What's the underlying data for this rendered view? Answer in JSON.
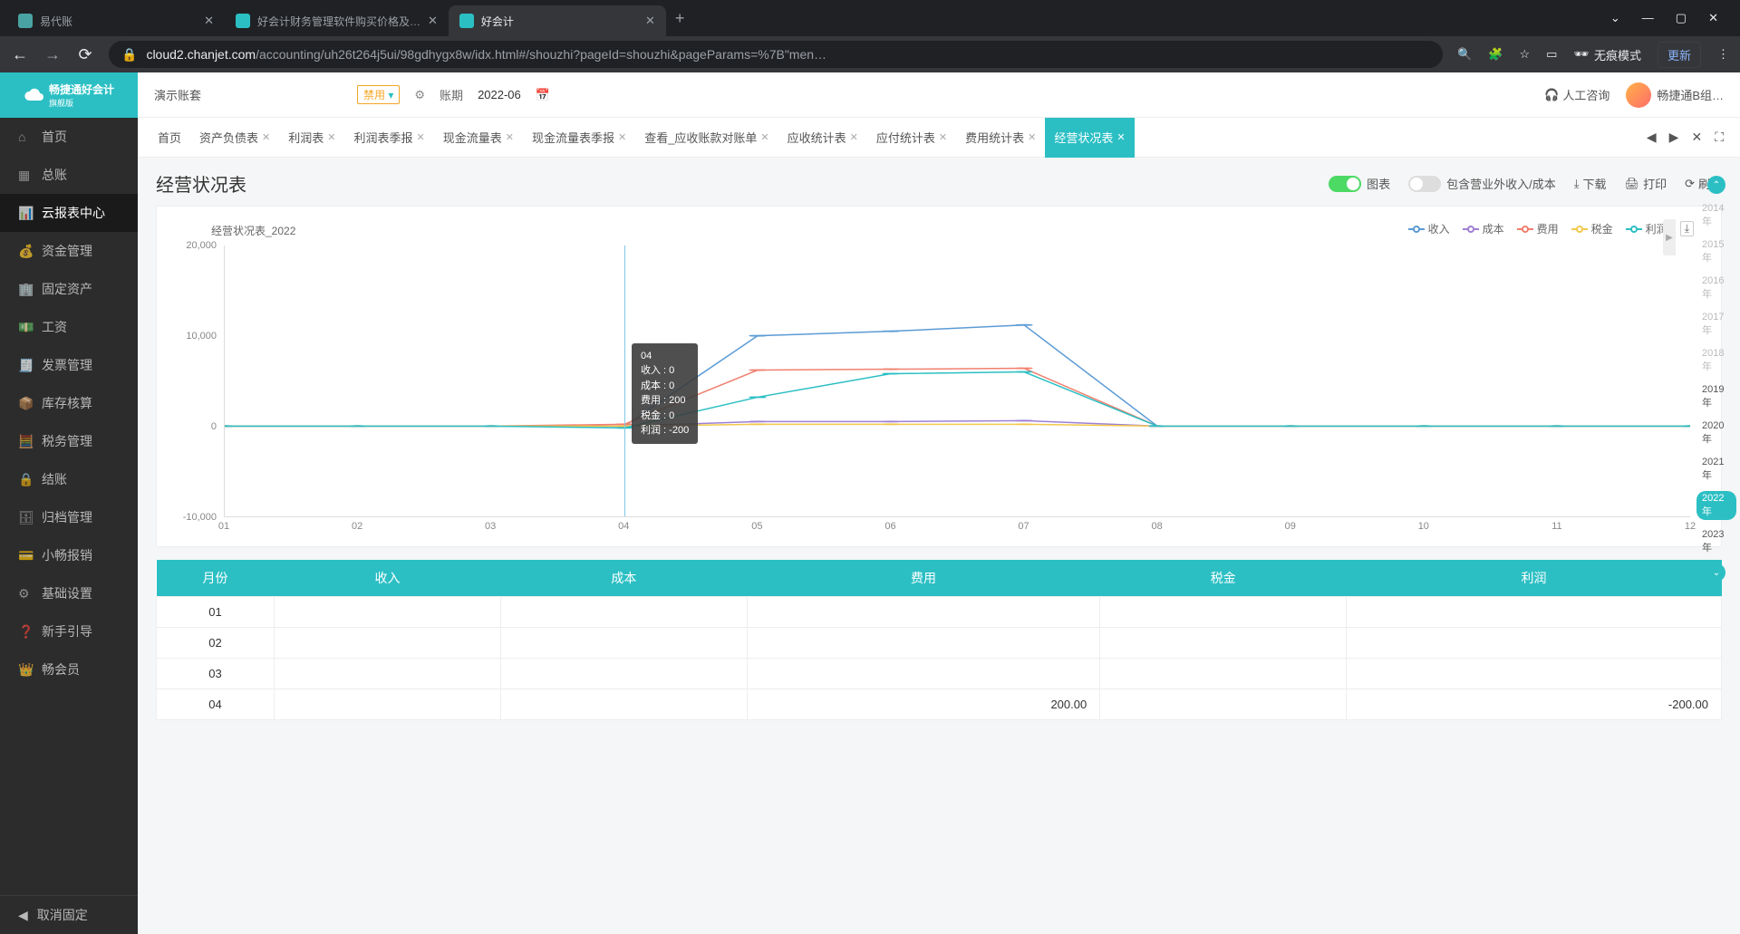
{
  "browser": {
    "tabs": [
      {
        "title": "易代账",
        "favicon_color": "#4aa3a3"
      },
      {
        "title": "好会计财务管理软件购买价格及…",
        "favicon_color": "#2bbfc4"
      },
      {
        "title": "好会计",
        "favicon_color": "#2bbfc4",
        "active": true
      }
    ],
    "url_domain": "cloud2.chanjet.com",
    "url_path": "/accounting/uh26t264j5ui/98gdhygx8w/idx.html#/shouzhi?pageId=shouzhi&pageParams=%7B\"men…",
    "incognito_label": "无痕模式",
    "update_label": "更新"
  },
  "sidebar": {
    "logo_text": "畅捷通好会计",
    "logo_sub": "旗舰版",
    "items": [
      "首页",
      "总账",
      "云报表中心",
      "资金管理",
      "固定资产",
      "工资",
      "发票管理",
      "库存核算",
      "税务管理",
      "结账",
      "归档管理",
      "小畅报销",
      "基础设置",
      "新手引导",
      "畅会员"
    ],
    "active_index": 2,
    "bottom_label": "取消固定"
  },
  "topbar": {
    "account_name": "演示账套",
    "trial_label": "禁用",
    "period_label": "账期",
    "period_value": "2022-06",
    "support_label": "人工咨询",
    "user_name": "畅捷通B组…"
  },
  "page_tabs": {
    "items": [
      "首页",
      "资产负债表",
      "利润表",
      "利润表季报",
      "现金流量表",
      "现金流量表季报",
      "查看_应收账款对账单",
      "应收统计表",
      "应付统计表",
      "费用统计表",
      "经营状况表"
    ],
    "active_index": 10
  },
  "page": {
    "title": "经营状况表",
    "toggle_chart_label": "图表",
    "toggle_extra_label": "包含营业外收入/成本",
    "download_label": "下载",
    "print_label": "打印",
    "refresh_label": "刷新"
  },
  "chart": {
    "title": "经营状况表_2022",
    "y_ticks": [
      -10000,
      0,
      10000,
      20000
    ],
    "y_tick_labels": [
      "-10,000",
      "0",
      "10,000",
      "20,000"
    ],
    "x_ticks": [
      "01",
      "02",
      "03",
      "04",
      "05",
      "06",
      "07",
      "08",
      "09",
      "10",
      "11",
      "12"
    ],
    "series": [
      {
        "name": "收入",
        "color": "#5b9bd5",
        "data": [
          0,
          0,
          0,
          0,
          10000,
          10500,
          11200,
          0,
          0,
          0,
          0,
          0
        ]
      },
      {
        "name": "成本",
        "color": "#9e7fd4",
        "data": [
          0,
          0,
          0,
          0,
          500,
          500,
          600,
          0,
          0,
          0,
          0,
          0
        ]
      },
      {
        "name": "费用",
        "color": "#f08070",
        "data": [
          0,
          0,
          0,
          200,
          6200,
          6300,
          6400,
          0,
          0,
          0,
          0,
          0
        ]
      },
      {
        "name": "税金",
        "color": "#f2c94c",
        "data": [
          0,
          0,
          0,
          0,
          200,
          200,
          200,
          0,
          0,
          0,
          0,
          0
        ]
      },
      {
        "name": "利润",
        "color": "#2bbfc4",
        "data": [
          0,
          0,
          0,
          -200,
          3200,
          5800,
          6000,
          0,
          0,
          0,
          0,
          0
        ]
      }
    ],
    "crosshair_index": 3,
    "tooltip": {
      "title": "04",
      "rows": [
        "收入 : 0",
        "成本 : 0",
        "费用 : 200",
        "税金 : 0",
        "利润 : -200"
      ]
    },
    "years": [
      "2014年",
      "2015年",
      "2016年",
      "2017年",
      "2018年",
      "2019年",
      "2020年",
      "2021年",
      "2022年",
      "2023年"
    ],
    "year_available_from": 5,
    "year_active_index": 8
  },
  "table": {
    "columns": [
      "月份",
      "收入",
      "成本",
      "费用",
      "税金",
      "利润"
    ],
    "rows": [
      {
        "month": "01",
        "income": "",
        "cost": "",
        "expense": "",
        "tax": "",
        "profit": ""
      },
      {
        "month": "02",
        "income": "",
        "cost": "",
        "expense": "",
        "tax": "",
        "profit": ""
      },
      {
        "month": "03",
        "income": "",
        "cost": "",
        "expense": "",
        "tax": "",
        "profit": ""
      },
      {
        "month": "04",
        "income": "",
        "cost": "",
        "expense": "200.00",
        "tax": "",
        "profit": "-200.00"
      }
    ]
  }
}
